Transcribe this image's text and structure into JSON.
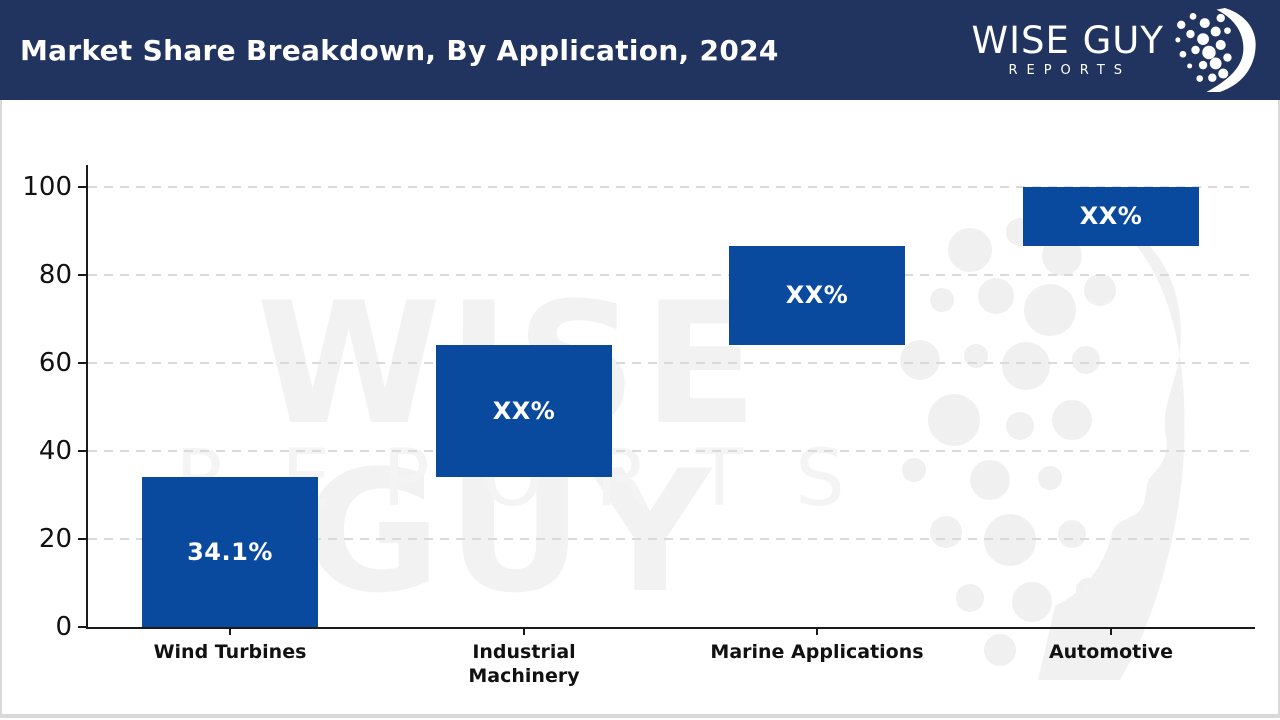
{
  "header": {
    "title": "Market Share Breakdown, By Application, 2024",
    "bg_color": "#21345f",
    "logo_text": "WISE GUY",
    "logo_subtext": "REPORTS"
  },
  "watermark": {
    "line1": "WISE GUY",
    "line2": "REPORTS"
  },
  "chart_data": {
    "type": "bar",
    "subtype": "waterfall",
    "title": "Market Share Breakdown, By Application, 2024",
    "categories": [
      "Wind Turbines",
      "Industrial Machinery",
      "Marine Applications",
      "Automotive"
    ],
    "series": [
      {
        "name": "Wind Turbines",
        "start": 0,
        "end": 34.1,
        "label": "34.1%"
      },
      {
        "name": "Industrial Machinery",
        "start": 34.1,
        "end": 64.1,
        "label": "XX%"
      },
      {
        "name": "Marine Applications",
        "start": 64.1,
        "end": 86.6,
        "label": "XX%"
      },
      {
        "name": "Automotive",
        "start": 86.6,
        "end": 100,
        "label": "XX%"
      }
    ],
    "bar_color": "#0a4a9e",
    "label_color": "#ffffff",
    "axis_color": "#1a1a1a",
    "grid_color": "#dadada",
    "ylim": [
      0,
      100
    ],
    "yticks": [
      0,
      20,
      40,
      60,
      80,
      100
    ],
    "xlabel": "",
    "ylabel": "",
    "grid": "horizontal-dashed",
    "legend": "none"
  }
}
